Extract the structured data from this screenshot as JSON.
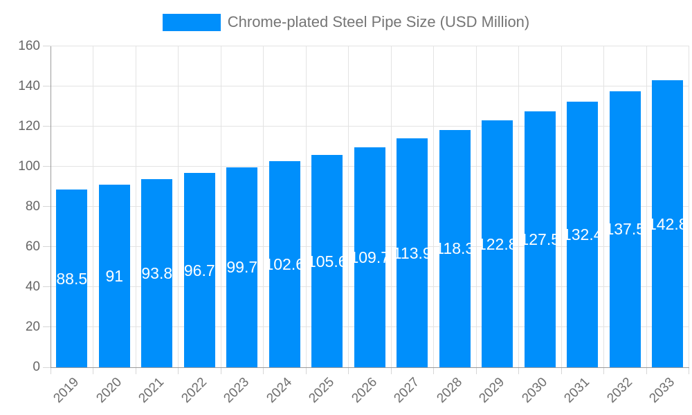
{
  "legend": {
    "swatch_color": "#008FFB"
  },
  "chart_data": {
    "type": "bar",
    "title": "Chrome-plated Steel Pipe Size (USD Million)",
    "series_name": "Chrome-plated Steel Pipe Size (USD Million)",
    "categories": [
      "2019",
      "2020",
      "2021",
      "2022",
      "2023",
      "2024",
      "2025",
      "2026",
      "2027",
      "2028",
      "2029",
      "2030",
      "2031",
      "2032",
      "2033"
    ],
    "values": [
      88.5,
      91,
      93.8,
      96.7,
      99.7,
      102.6,
      105.6,
      109.7,
      113.9,
      118.3,
      122.8,
      127.5,
      132.4,
      137.5,
      142.8
    ],
    "value_labels": [
      "88.5",
      "91",
      "93.8",
      "96.7",
      "99.7",
      "102.6",
      "105.6",
      "109.7",
      "113.9",
      "118.3",
      "122.8",
      "127.5",
      "132.4",
      "137.5",
      "142.8"
    ],
    "xlabel": "",
    "ylabel": "",
    "ylim": [
      0,
      160
    ],
    "yticks": [
      0,
      20,
      40,
      60,
      80,
      100,
      120,
      140,
      160
    ],
    "grid": true,
    "legend_position": "top",
    "bar_color": "#008FFB",
    "value_label_color": "#FFFFFF"
  }
}
